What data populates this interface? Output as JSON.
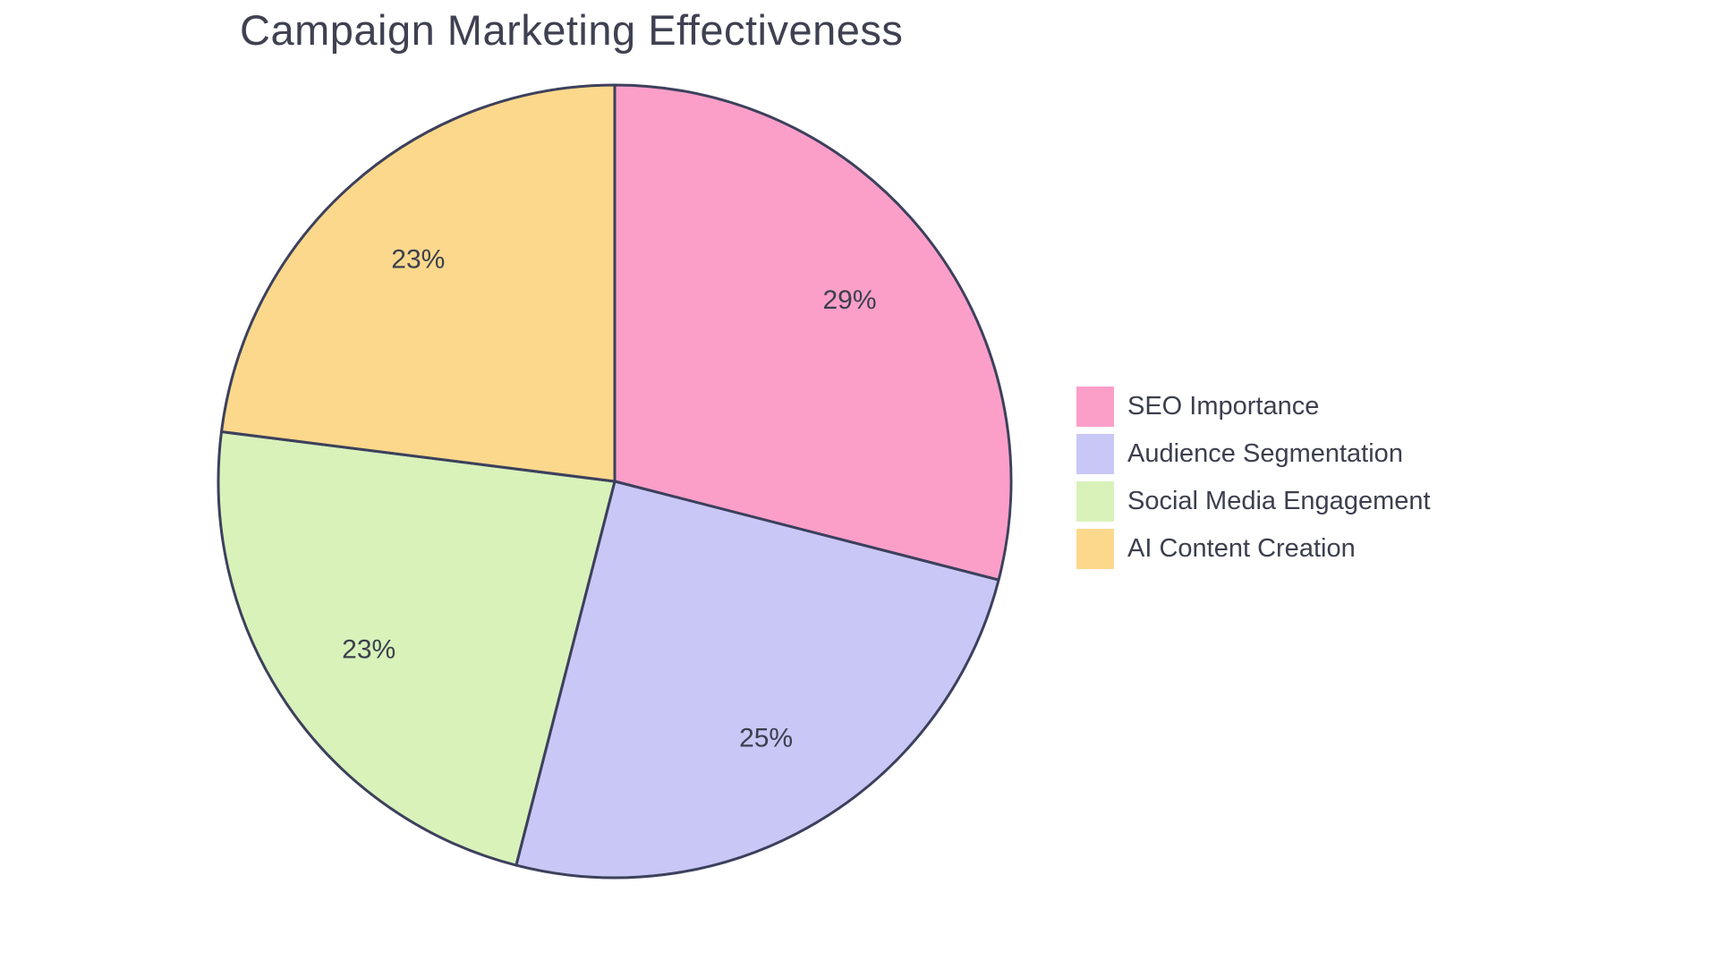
{
  "title": "Campaign Marketing Effectiveness",
  "chart_data": {
    "type": "pie",
    "title": "Campaign Marketing Effectiveness",
    "categories": [
      "SEO Importance",
      "Audience Segmentation",
      "Social Media Engagement",
      "AI Content Creation"
    ],
    "values": [
      29,
      25,
      23,
      23
    ],
    "slice_labels": [
      "29%",
      "25%",
      "23%",
      "23%"
    ],
    "colors": [
      "#FB9FC9",
      "#C9C7F5",
      "#D8F2BA",
      "#FBD88C"
    ],
    "start_angle_deg": 0,
    "direction": "clockwise",
    "legend_position": "right",
    "slice_border_color": "#3C405C",
    "slice_border_width": 3,
    "label_color": "#3C3F4E",
    "label_radius_fraction": 0.75,
    "background_color": "#FFFFFF",
    "title_color": "#3F4152"
  }
}
